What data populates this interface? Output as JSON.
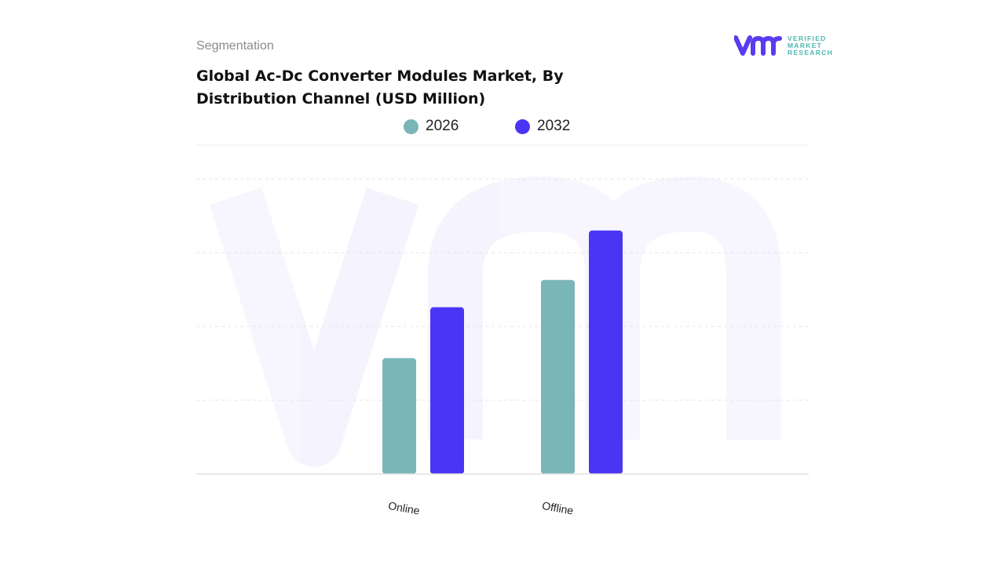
{
  "header": {
    "segment_label": "Segmentation",
    "title": "Global Ac-Dc Converter Modules Market, By Distribution Channel (USD Million)"
  },
  "logo": {
    "mark": "vmr",
    "line1": "VERIFIED",
    "line2": "MARKET",
    "line3": "RESEARCH",
    "color": "#5a3bf0",
    "text_color": "#4bb8b0"
  },
  "chart_data": {
    "type": "bar",
    "title": "Global Ac-Dc Converter Modules Market, By Distribution Channel (USD Million)",
    "categories": [
      "Online",
      "Offline"
    ],
    "series": [
      {
        "name": "2026",
        "values": [
          1.57,
          2.63
        ],
        "color": "#7ab5b8"
      },
      {
        "name": "2032",
        "values": [
          2.26,
          3.3
        ],
        "color": "#4a35f5"
      }
    ],
    "ylim": [
      0,
      4
    ],
    "y_units": "relative (no axis values printed)",
    "grid": true,
    "legend": "top-center",
    "xlabel": "",
    "ylabel": ""
  }
}
